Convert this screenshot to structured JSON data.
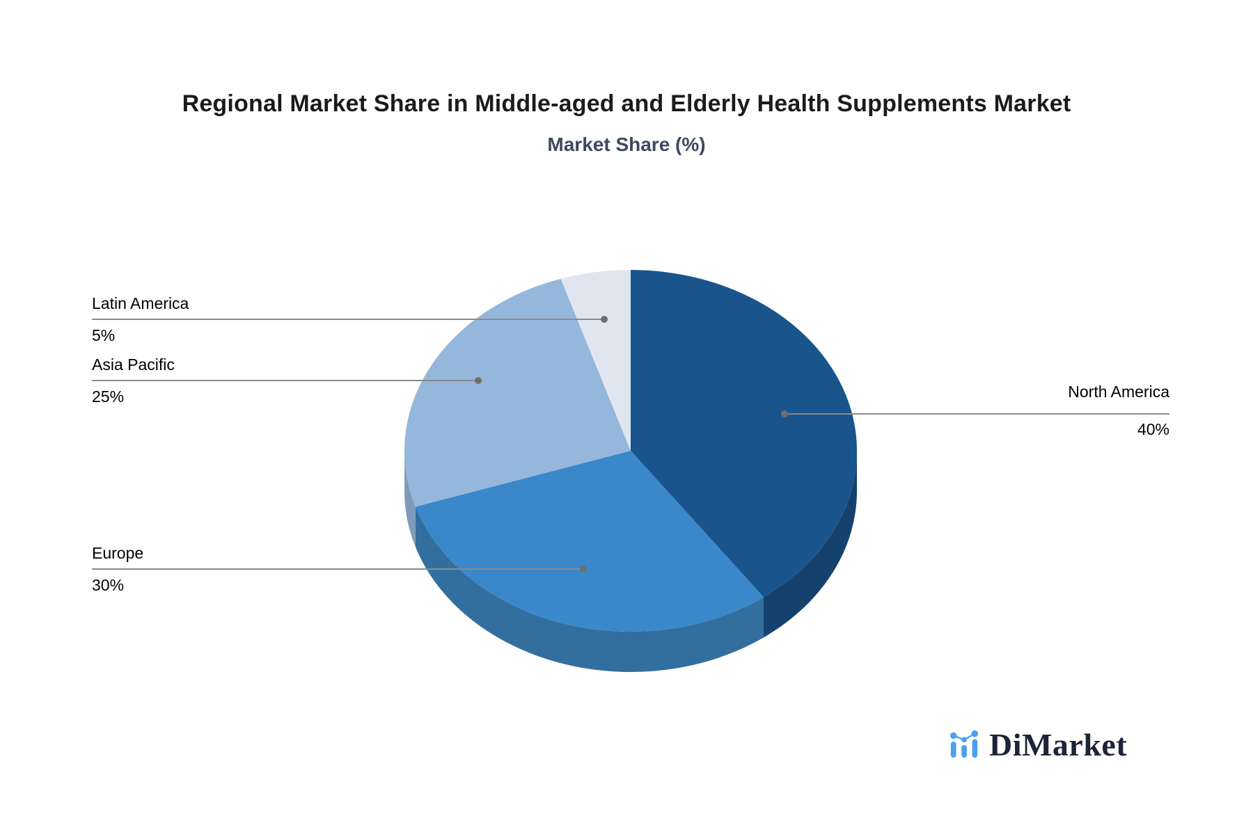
{
  "title": "Regional Market Share in Middle-aged and Elderly Health Supplements Market",
  "subtitle": "Market Share (%)",
  "chart_data": {
    "type": "pie",
    "style": "3d",
    "title": "Regional Market Share in Middle-aged and Elderly Health Supplements Market",
    "subtitle": "Market Share (%)",
    "unit": "%",
    "start_angle_deg": 0,
    "direction": "clockwise",
    "legend_position": "none",
    "categories": [
      "North America",
      "Europe",
      "Asia Pacific",
      "Latin America"
    ],
    "values": [
      40,
      30,
      25,
      5
    ],
    "colors": [
      "#19558C",
      "#3A88CA",
      "#95B7DB",
      "#E0E6F0"
    ],
    "side_colors": [
      "#14426D",
      "#336F9E",
      "#7E9CBA",
      "#C4D0E0"
    ],
    "leader_line_color": "#8A8A8A",
    "leader_dot_color": "#6F6F6F"
  },
  "labels": {
    "latin_america": {
      "name": "Latin America",
      "value": "5%"
    },
    "asia_pacific": {
      "name": "Asia Pacific",
      "value": "25%"
    },
    "europe": {
      "name": "Europe",
      "value": "30%"
    },
    "north_america": {
      "name": "North America",
      "value": "40%"
    }
  },
  "logo": {
    "text": "DiMarket",
    "icon": "bar-chart-with-trend-dots-icon",
    "icon_color": "#4AA0F2",
    "text_color": "#1C2537"
  }
}
